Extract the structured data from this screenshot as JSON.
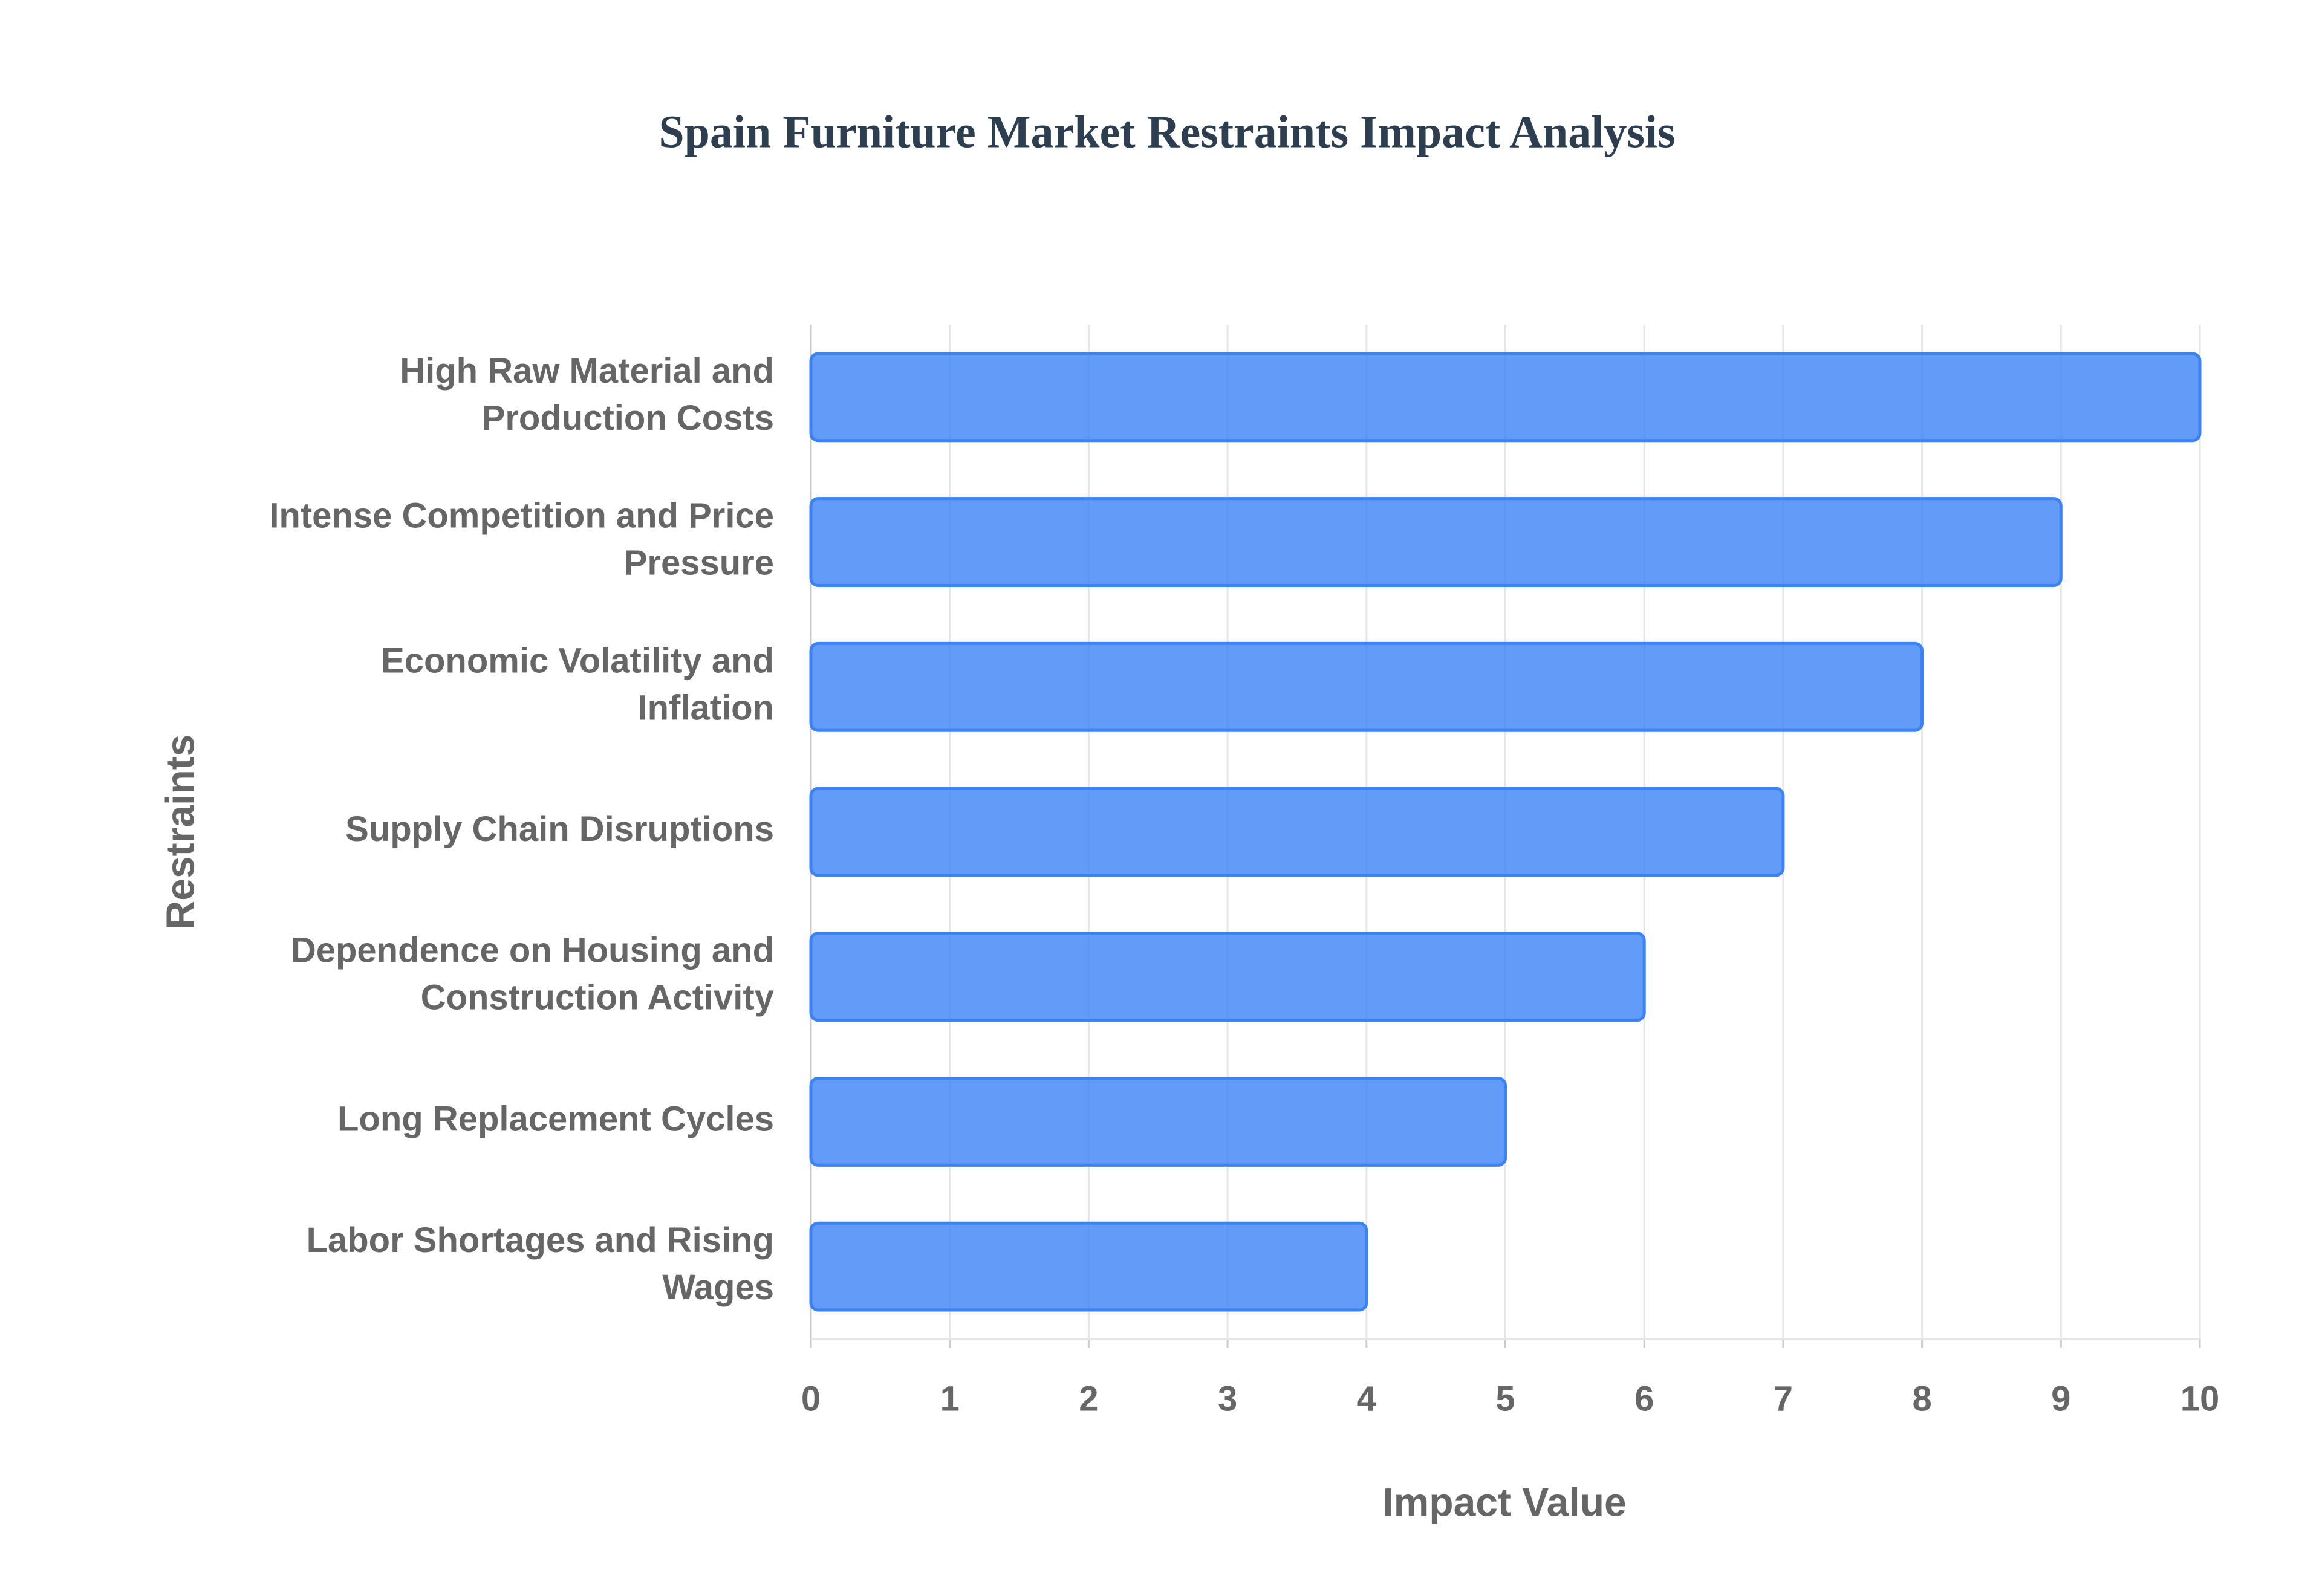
{
  "chart_data": {
    "type": "bar",
    "orientation": "horizontal",
    "title": "Spain Furniture Market Restraints Impact Analysis",
    "x_label": "Impact Value",
    "y_label": "Restraints",
    "categories": [
      "High Raw Material and Production Costs",
      "Intense Competition and Price Pressure",
      "Economic Volatility and Inflation",
      "Supply Chain Disruptions",
      "Dependence on Housing and Construction Activity",
      "Long Replacement Cycles",
      "Labor Shortages and Rising Wages"
    ],
    "values": [
      10,
      9,
      8,
      7,
      6,
      5,
      4
    ],
    "color": "#3b82f6",
    "xlim": [
      0,
      10
    ],
    "xticks": [
      0,
      1,
      2,
      3,
      4,
      5,
      6,
      7,
      8,
      9,
      10
    ],
    "grid": true
  }
}
